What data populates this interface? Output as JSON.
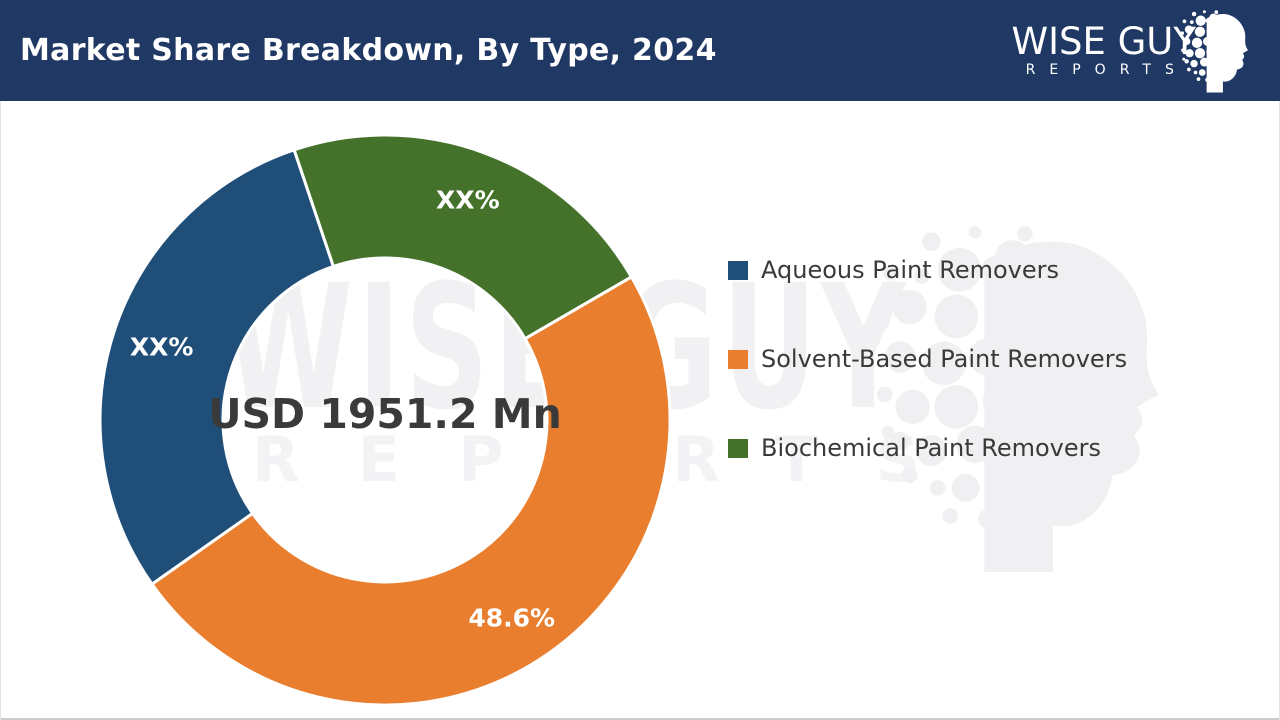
{
  "header": {
    "title": "Market Share Breakdown, By Type, 2024",
    "logo": {
      "name": "WISE GUY",
      "sub": "REPORTS"
    }
  },
  "watermark": {
    "line1": "WISE GUY",
    "line2": "REPORTS"
  },
  "chart_data": {
    "type": "pie",
    "subtype": "donut",
    "title": "Market Share Breakdown, By Type, 2024",
    "center_label": "USD 1951.2 Mn",
    "start_angle_deg": -18.6,
    "clockwise": true,
    "hole_radius_ratio": 0.57,
    "legend_position": "right",
    "segments": [
      {
        "name": "Biochemical Paint Removers",
        "label": "XX%",
        "value_pct_est": 21.8,
        "color": "#45722A"
      },
      {
        "name": "Solvent-Based Paint Removers",
        "label": "48.6%",
        "value_pct_est": 48.6,
        "color": "#E87E2E"
      },
      {
        "name": "Aqueous Paint Removers",
        "label": "XX%",
        "value_pct_est": 29.6,
        "color": "#1F4E79"
      }
    ]
  },
  "legend": {
    "items": [
      {
        "label": "Aqueous Paint Removers",
        "color": "#1F4E79"
      },
      {
        "label": "Solvent-Based Paint Removers",
        "color": "#E87E2E"
      },
      {
        "label": "Biochemical Paint Removers",
        "color": "#45722A"
      }
    ]
  },
  "colors": {
    "header_bg": "#1F3864",
    "text_dark": "#3A3A3A",
    "watermark": "#F1F1F4",
    "bottom_border": "#CCCCCC"
  }
}
